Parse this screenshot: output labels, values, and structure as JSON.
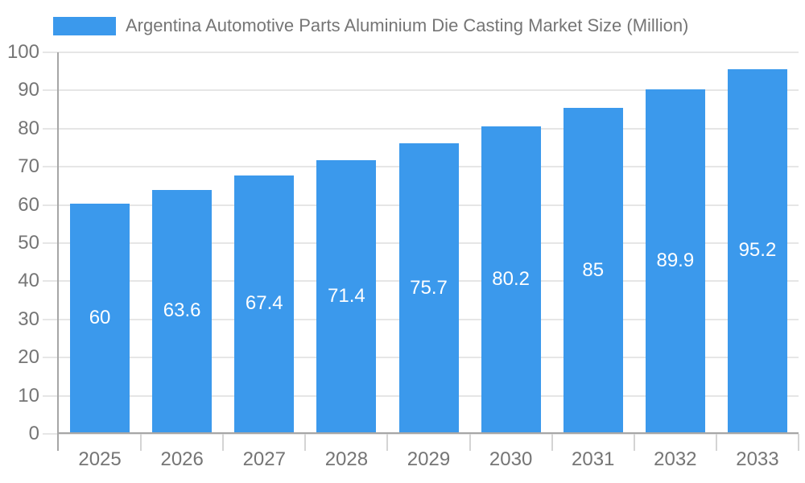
{
  "chart_data": {
    "type": "bar",
    "title": "Argentina Automotive Parts Aluminium Die Casting Market Size (Million)",
    "categories": [
      "2025",
      "2026",
      "2027",
      "2028",
      "2029",
      "2030",
      "2031",
      "2032",
      "2033"
    ],
    "values": [
      60,
      63.6,
      67.4,
      71.4,
      75.7,
      80.2,
      85,
      89.9,
      95.2
    ],
    "value_labels": [
      "60",
      "63.6",
      "67.4",
      "71.4",
      "75.7",
      "80.2",
      "85",
      "89.9",
      "95.2"
    ],
    "xlabel": "",
    "ylabel": "",
    "ylim": [
      0,
      100
    ],
    "ytick_step": 10,
    "ytick_labels": [
      "0",
      "10",
      "20",
      "30",
      "40",
      "50",
      "60",
      "70",
      "80",
      "90",
      "100"
    ],
    "grid": true,
    "legend_position": "top-left",
    "colors": {
      "bar": "#3B99EC",
      "grid": "#E6E6E6",
      "axis": "#A6A6A6",
      "category_tick": "#D4D4D4",
      "label_text": "#757575",
      "value_text": "#FFFFFF",
      "background": "#FFFFFF"
    }
  }
}
